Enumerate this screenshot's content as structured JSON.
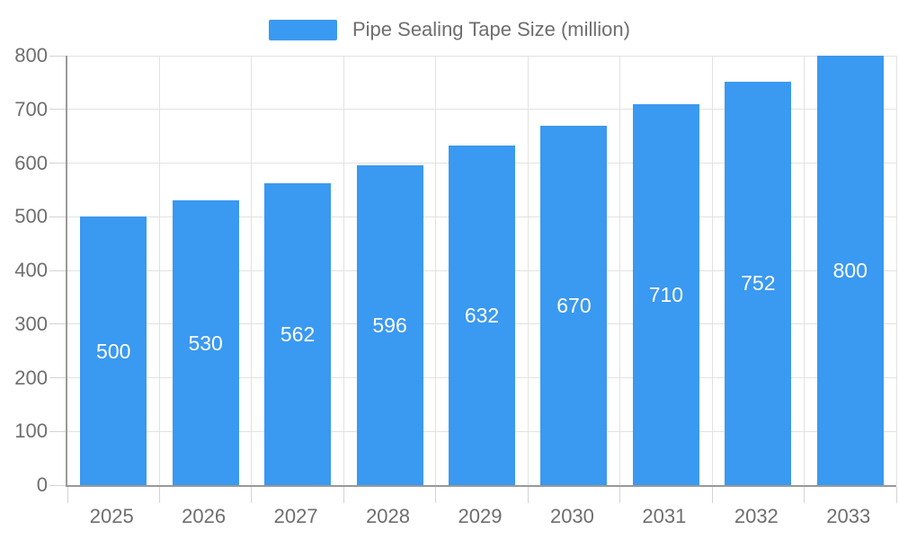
{
  "legend": {
    "label": "Pipe Sealing Tape Size (million)"
  },
  "colors": {
    "bar": "#3A99F0",
    "bar_label": "#FFFFFF",
    "axis_line": "#999999",
    "grid_line": "#E2E2E2",
    "tick_line": "#D4D4D4",
    "axis_text": "#6E6E6E",
    "background": "#FFFFFF"
  },
  "chart_data": {
    "type": "bar",
    "title": "Pipe Sealing Tape Size (million)",
    "categories": [
      "2025",
      "2026",
      "2027",
      "2028",
      "2029",
      "2030",
      "2031",
      "2032",
      "2033"
    ],
    "series": [
      {
        "name": "Pipe Sealing Tape Size (million)",
        "values": [
          500,
          530,
          562,
          596,
          632,
          670,
          710,
          752,
          800
        ]
      }
    ],
    "value_labels": [
      "500",
      "530",
      "562",
      "596",
      "632",
      "670",
      "710",
      "752",
      "800"
    ],
    "xlabel": "",
    "ylabel": "",
    "ylim": [
      0,
      800
    ],
    "yticks": [
      0,
      100,
      200,
      300,
      400,
      500,
      600,
      700,
      800
    ],
    "grid": "on",
    "grid_vertical": "on",
    "legend_position": "top-center",
    "value_label_position": "inside-middle"
  }
}
